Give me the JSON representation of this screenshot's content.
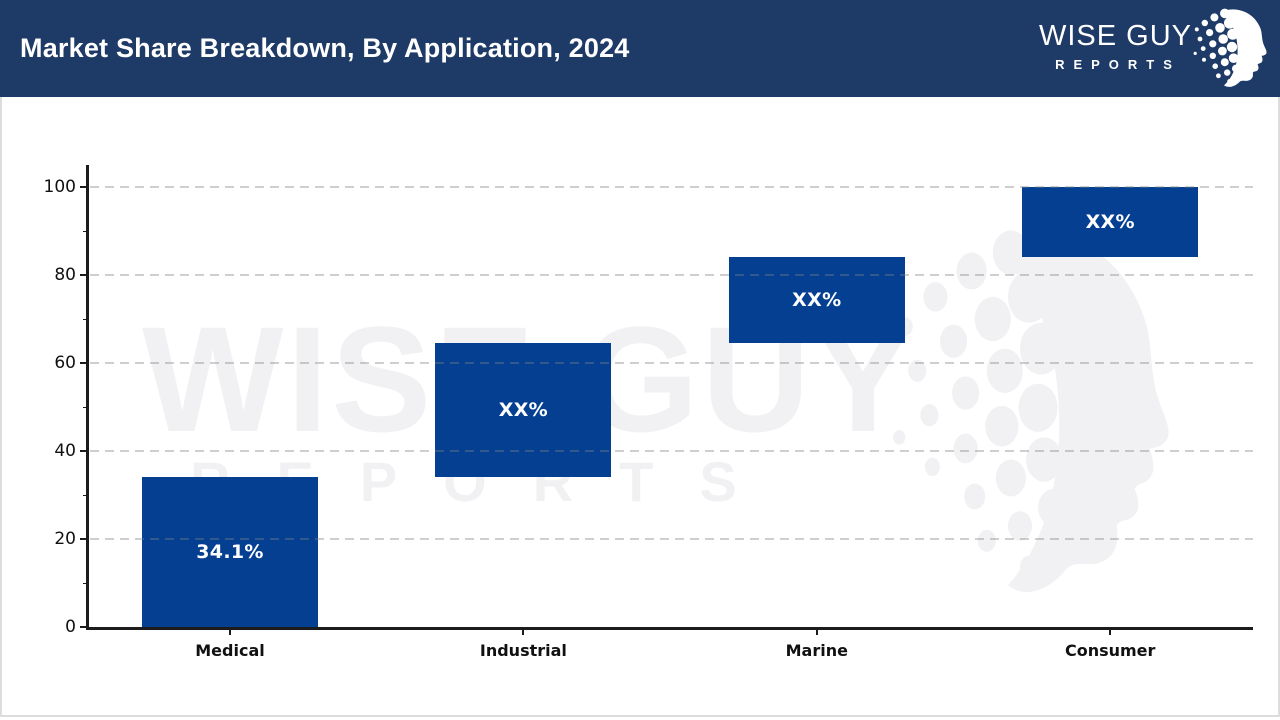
{
  "header": {
    "title": "Market Share Breakdown, By Application, 2024"
  },
  "logo": {
    "line1": "WISE GUY",
    "line2": "REPORTS"
  },
  "watermark": {
    "line1": "WISE GUY",
    "line2": "REPORTS"
  },
  "chart_data": {
    "type": "bar",
    "subtype": "waterfall",
    "title": "Market Share Breakdown, By Application, 2024",
    "categories": [
      "Medical",
      "Industrial",
      "Marine",
      "Consumer"
    ],
    "bars": [
      {
        "category": "Medical",
        "start": 0,
        "end": 34.1,
        "label": "34.1%"
      },
      {
        "category": "Industrial",
        "start": 34.1,
        "end": 64.5,
        "label": "XX%"
      },
      {
        "category": "Marine",
        "start": 64.5,
        "end": 84.1,
        "label": "XX%"
      },
      {
        "category": "Consumer",
        "start": 84.1,
        "end": 100,
        "label": "XX%"
      }
    ],
    "xlabel": "",
    "ylabel": "",
    "ylim": [
      0,
      100
    ],
    "yticks": [
      0,
      20,
      40,
      60,
      80,
      100
    ],
    "minor_yticks": [
      10,
      30,
      50,
      70,
      90
    ],
    "grid": "horizontal-dashed",
    "legend": "none",
    "colors": {
      "bar": "#043f92",
      "bar_label": "#ffffff",
      "axis": "#1c1c1c",
      "tick_label": "#111111"
    }
  },
  "theme": {
    "header_bg": "#1e3a66",
    "header_text": "#ffffff",
    "watermark_color": "#f1f1f3"
  }
}
